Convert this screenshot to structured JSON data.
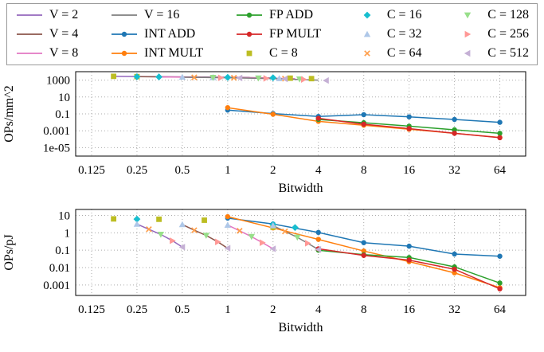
{
  "figure": {
    "xlabel": "Bitwidth"
  },
  "legend": {
    "entries": [
      {
        "label": "V = 2",
        "color": "#9467bd",
        "swatch": "line"
      },
      {
        "label": "V = 4",
        "color": "#8c564b",
        "swatch": "line"
      },
      {
        "label": "V = 8",
        "color": "#e377c2",
        "swatch": "line"
      },
      {
        "label": "V = 16",
        "color": "#7f7f7f",
        "swatch": "line"
      },
      {
        "label": "INT ADD",
        "color": "#1f77b4",
        "swatch": "line-circle"
      },
      {
        "label": "INT MULT",
        "color": "#ff7f0e",
        "swatch": "line-circle"
      },
      {
        "label": "FP ADD",
        "color": "#2ca02c",
        "swatch": "line-circle"
      },
      {
        "label": "FP MULT",
        "color": "#d62728",
        "swatch": "line-circle"
      },
      {
        "label": "C = 8",
        "color": "#bcbd22",
        "swatch": "marker",
        "marker": "square"
      },
      {
        "label": "C = 16",
        "color": "#17becf",
        "swatch": "marker",
        "marker": "diamond"
      },
      {
        "label": "C = 32",
        "color": "#aec7e8",
        "swatch": "marker",
        "marker": "triangle-up"
      },
      {
        "label": "C = 64",
        "color": "#ff9e4a",
        "swatch": "marker",
        "marker": "x"
      },
      {
        "label": "C = 128",
        "color": "#98df8a",
        "swatch": "marker",
        "marker": "triangle-down"
      },
      {
        "label": "C = 256",
        "color": "#ff9896",
        "swatch": "marker",
        "marker": "triangle-right"
      },
      {
        "label": "C = 512",
        "color": "#c5b0d5",
        "swatch": "marker",
        "marker": "triangle-left"
      }
    ]
  },
  "chart_data": [
    {
      "type": "line",
      "title": "",
      "xlabel": "Bitwidth",
      "ylabel": "OPs/mm^2",
      "x_scale": "log2",
      "y_scale": "log10",
      "xlim": [
        0.098,
        95
      ],
      "ylim": [
        1e-06,
        10000.0
      ],
      "x_ticks": [
        0.125,
        0.25,
        0.5,
        1,
        2,
        4,
        8,
        16,
        32,
        64
      ],
      "x_tick_labels": [
        "0.125",
        "0.25",
        "0.5",
        "1",
        "2",
        "4",
        "8",
        "16",
        "32",
        "64"
      ],
      "y_ticks": [
        1e-05,
        0.001,
        0.1,
        10,
        1000
      ],
      "y_tick_labels": [
        "1e-05",
        "0.001",
        "0.1",
        "10",
        "1000"
      ],
      "grid": true,
      "series": [
        {
          "name": "V = 2",
          "color": "#9467bd",
          "line": true,
          "marker": null,
          "points": [
            [
              0.175,
              2800
            ],
            [
              0.35,
              2500
            ],
            [
              0.7,
              2300
            ],
            [
              1.4,
              2100
            ]
          ]
        },
        {
          "name": "V = 4",
          "color": "#8c564b",
          "line": true,
          "marker": null,
          "points": [
            [
              0.25,
              2600
            ],
            [
              0.5,
              2300
            ],
            [
              1.0,
              2100
            ],
            [
              2.0,
              1800
            ]
          ]
        },
        {
          "name": "V = 8",
          "color": "#e377c2",
          "line": true,
          "marker": null,
          "points": [
            [
              0.35,
              2400
            ],
            [
              0.7,
              2100
            ],
            [
              1.4,
              1900
            ],
            [
              2.8,
              1500
            ]
          ]
        },
        {
          "name": "V = 16",
          "color": "#7f7f7f",
          "line": true,
          "marker": null,
          "points": [
            [
              0.5,
              2200
            ],
            [
              1.0,
              1900
            ],
            [
              2.0,
              1500
            ],
            [
              4.0,
              1000
            ]
          ]
        },
        {
          "name": "INT ADD",
          "color": "#1f77b4",
          "line": true,
          "marker": "circle",
          "points": [
            [
              1,
              0.28
            ],
            [
              2,
              0.11
            ],
            [
              4,
              0.05
            ],
            [
              8,
              0.08
            ],
            [
              16,
              0.045
            ],
            [
              32,
              0.022
            ],
            [
              64,
              0.01
            ]
          ]
        },
        {
          "name": "INT MULT",
          "color": "#ff7f0e",
          "line": true,
          "marker": "circle",
          "points": [
            [
              1,
              0.55
            ],
            [
              2,
              0.09
            ],
            [
              4,
              0.013
            ],
            [
              8,
              0.0045
            ],
            [
              16,
              0.0015
            ],
            [
              32,
              0.0005
            ],
            [
              64,
              0.00016
            ]
          ]
        },
        {
          "name": "FP ADD",
          "color": "#2ca02c",
          "line": true,
          "marker": "circle",
          "points": [
            [
              4,
              0.022
            ],
            [
              8,
              0.009
            ],
            [
              16,
              0.0035
            ],
            [
              32,
              0.0013
            ],
            [
              64,
              0.0005
            ]
          ]
        },
        {
          "name": "FP MULT",
          "color": "#d62728",
          "line": true,
          "marker": "circle",
          "points": [
            [
              4,
              0.03
            ],
            [
              8,
              0.006
            ],
            [
              16,
              0.0018
            ],
            [
              32,
              0.0005
            ],
            [
              64,
              0.00015
            ]
          ]
        },
        {
          "name": "C = 8",
          "color": "#bcbd22",
          "line": false,
          "marker": "square",
          "points": [
            [
              0.175,
              2800
            ],
            [
              0.25,
              2600
            ],
            [
              2.6,
              1700
            ],
            [
              3.6,
              1500
            ]
          ]
        },
        {
          "name": "C = 16",
          "color": "#17becf",
          "line": false,
          "marker": "diamond",
          "points": [
            [
              0.25,
              2500
            ],
            [
              0.35,
              2400
            ],
            [
              1.0,
              2100
            ],
            [
              2.0,
              1900
            ]
          ]
        },
        {
          "name": "C = 32",
          "color": "#aec7e8",
          "line": false,
          "marker": "triangle-up",
          "points": [
            [
              0.5,
              2300
            ],
            [
              0.8,
              2100
            ],
            [
              2.2,
              1600
            ]
          ]
        },
        {
          "name": "C = 64",
          "color": "#ff9e4a",
          "line": false,
          "marker": "x",
          "points": [
            [
              0.6,
              2100
            ],
            [
              1.1,
              1900
            ],
            [
              2.4,
              1500
            ]
          ]
        },
        {
          "name": "C = 128",
          "color": "#98df8a",
          "line": false,
          "marker": "triangle-down",
          "points": [
            [
              0.8,
              2000
            ],
            [
              1.6,
              1700
            ],
            [
              3.0,
              1300
            ]
          ]
        },
        {
          "name": "C = 256",
          "color": "#ff9896",
          "line": false,
          "marker": "triangle-right",
          "points": [
            [
              0.9,
              1900
            ],
            [
              1.8,
              1600
            ],
            [
              3.2,
              1200
            ]
          ]
        },
        {
          "name": "C = 512",
          "color": "#c5b0d5",
          "line": false,
          "marker": "triangle-left",
          "points": [
            [
              1.2,
              1800
            ],
            [
              2.4,
              1400
            ],
            [
              4.5,
              900
            ]
          ]
        }
      ]
    },
    {
      "type": "line",
      "title": "",
      "xlabel": "Bitwidth",
      "ylabel": "OPs/pJ",
      "x_scale": "log2",
      "y_scale": "log10",
      "xlim": [
        0.098,
        95
      ],
      "ylim": [
        0.00025,
        22
      ],
      "x_ticks": [
        0.125,
        0.25,
        0.5,
        1,
        2,
        4,
        8,
        16,
        32,
        64
      ],
      "x_tick_labels": [
        "0.125",
        "0.25",
        "0.5",
        "1",
        "2",
        "4",
        "8",
        "16",
        "32",
        "64"
      ],
      "y_ticks": [
        0.001,
        0.01,
        0.1,
        1,
        10
      ],
      "y_tick_labels": [
        "0.001",
        "0.01",
        "0.1",
        "1",
        "10"
      ],
      "grid": true,
      "series": [
        {
          "name": "V = 2",
          "color": "#9467bd",
          "line": true,
          "marker": null,
          "points": [
            [
              0.25,
              3.2
            ],
            [
              0.3,
              1.6
            ],
            [
              0.36,
              0.8
            ],
            [
              0.43,
              0.35
            ],
            [
              0.5,
              0.15
            ]
          ]
        },
        {
          "name": "V = 4",
          "color": "#8c564b",
          "line": true,
          "marker": null,
          "points": [
            [
              0.5,
              3.0
            ],
            [
              0.6,
              1.4
            ],
            [
              0.72,
              0.7
            ],
            [
              0.86,
              0.3
            ],
            [
              1.0,
              0.13
            ]
          ]
        },
        {
          "name": "V = 8",
          "color": "#e377c2",
          "line": true,
          "marker": null,
          "points": [
            [
              1.0,
              2.8
            ],
            [
              1.2,
              1.3
            ],
            [
              1.44,
              0.6
            ],
            [
              1.7,
              0.27
            ],
            [
              2.0,
              0.12
            ]
          ]
        },
        {
          "name": "V = 16",
          "color": "#7f7f7f",
          "line": true,
          "marker": null,
          "points": [
            [
              2.0,
              2.6
            ],
            [
              2.4,
              1.2
            ],
            [
              2.9,
              0.55
            ],
            [
              3.4,
              0.25
            ],
            [
              4.0,
              0.11
            ]
          ]
        },
        {
          "name": "INT ADD",
          "color": "#1f77b4",
          "line": true,
          "marker": "circle",
          "points": [
            [
              1,
              7
            ],
            [
              2,
              3.2
            ],
            [
              4,
              1.05
            ],
            [
              8,
              0.27
            ],
            [
              16,
              0.17
            ],
            [
              32,
              0.06
            ],
            [
              64,
              0.045
            ]
          ]
        },
        {
          "name": "INT MULT",
          "color": "#ff7f0e",
          "line": true,
          "marker": "circle",
          "points": [
            [
              1,
              8.5
            ],
            [
              2,
              1.9
            ],
            [
              4,
              0.42
            ],
            [
              8,
              0.09
            ],
            [
              16,
              0.022
            ],
            [
              32,
              0.005
            ],
            [
              64,
              0.0007
            ]
          ]
        },
        {
          "name": "FP ADD",
          "color": "#2ca02c",
          "line": true,
          "marker": "circle",
          "points": [
            [
              4,
              0.1
            ],
            [
              8,
              0.055
            ],
            [
              16,
              0.038
            ],
            [
              32,
              0.011
            ],
            [
              64,
              0.0013
            ]
          ]
        },
        {
          "name": "FP MULT",
          "color": "#d62728",
          "line": true,
          "marker": "circle",
          "points": [
            [
              4,
              0.12
            ],
            [
              8,
              0.05
            ],
            [
              16,
              0.027
            ],
            [
              32,
              0.008
            ],
            [
              64,
              0.0006
            ]
          ]
        },
        {
          "name": "C = 8",
          "color": "#bcbd22",
          "line": false,
          "marker": "square",
          "points": [
            [
              0.175,
              6.3
            ],
            [
              0.35,
              6.0
            ],
            [
              0.7,
              5.3
            ],
            [
              2.0,
              2.1
            ]
          ]
        },
        {
          "name": "C = 16",
          "color": "#17becf",
          "line": false,
          "marker": "diamond",
          "points": [
            [
              0.25,
              6.1
            ],
            [
              2.0,
              3.0
            ],
            [
              2.8,
              2.0
            ]
          ]
        },
        {
          "name": "C = 32",
          "color": "#aec7e8",
          "line": false,
          "marker": "triangle-up",
          "points": [
            [
              0.25,
              3.2
            ],
            [
              0.5,
              3.0
            ],
            [
              1.0,
              2.8
            ],
            [
              2.0,
              2.6
            ]
          ]
        },
        {
          "name": "C = 64",
          "color": "#ff9e4a",
          "line": false,
          "marker": "x",
          "points": [
            [
              0.3,
              1.6
            ],
            [
              0.6,
              1.4
            ],
            [
              1.2,
              1.3
            ],
            [
              2.4,
              1.2
            ]
          ]
        },
        {
          "name": "C = 128",
          "color": "#98df8a",
          "line": false,
          "marker": "triangle-down",
          "points": [
            [
              0.36,
              0.8
            ],
            [
              0.72,
              0.7
            ],
            [
              1.44,
              0.6
            ],
            [
              2.9,
              0.55
            ]
          ]
        },
        {
          "name": "C = 256",
          "color": "#ff9896",
          "line": false,
          "marker": "triangle-right",
          "points": [
            [
              0.43,
              0.35
            ],
            [
              0.86,
              0.3
            ],
            [
              1.7,
              0.27
            ],
            [
              3.4,
              0.25
            ]
          ]
        },
        {
          "name": "C = 512",
          "color": "#c5b0d5",
          "line": false,
          "marker": "triangle-left",
          "points": [
            [
              0.5,
              0.15
            ],
            [
              1.0,
              0.13
            ],
            [
              2.0,
              0.12
            ],
            [
              4.0,
              0.11
            ]
          ]
        }
      ]
    }
  ]
}
